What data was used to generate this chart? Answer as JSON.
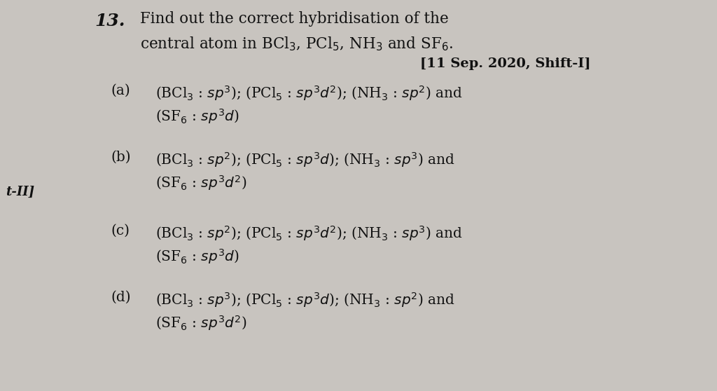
{
  "bg_color": "#c8c4bf",
  "text_color": "#111111",
  "question_number": "13.",
  "question_line1": "Find out the correct hybridisation of the",
  "question_line2": "central atom in BCl$_3$, PCl$_5$, NH$_3$ and SF$_6$.",
  "reference": "[11 Sep. 2020, Shift-I]",
  "options": [
    {
      "label": "(a)",
      "line1": "(BCl$_3$ : $sp^3$); (PCl$_5$ : $sp^3d^2$); (NH$_3$ : $sp^2$) and",
      "line2": "(SF$_6$ : $sp^3d$)"
    },
    {
      "label": "(b)",
      "line1": "(BCl$_3$ : $sp^2$); (PCl$_5$ : $sp^3d$); (NH$_3$ : $sp^3$) and",
      "line2": "(SF$_6$ : $sp^3d^2$)"
    },
    {
      "label": "(c)",
      "line1": "(BCl$_3$ : $sp^2$); (PCl$_5$ : $sp^3d^2$); (NH$_3$ : $sp^3$) and",
      "line2": "(SF$_6$ : $sp^3d$)"
    },
    {
      "label": "(d)",
      "line1": "(BCl$_3$ : $sp^3$); (PCl$_5$ : $sp^3d$); (NH$_3$ : $sp^2$) and",
      "line2": "(SF$_6$ : $sp^3d^2$)"
    }
  ],
  "side_label": "t-II]",
  "fontsize_question": 15.5,
  "fontsize_options": 14.5,
  "fontsize_ref": 14,
  "fontsize_number": 18,
  "fontsize_side": 13
}
